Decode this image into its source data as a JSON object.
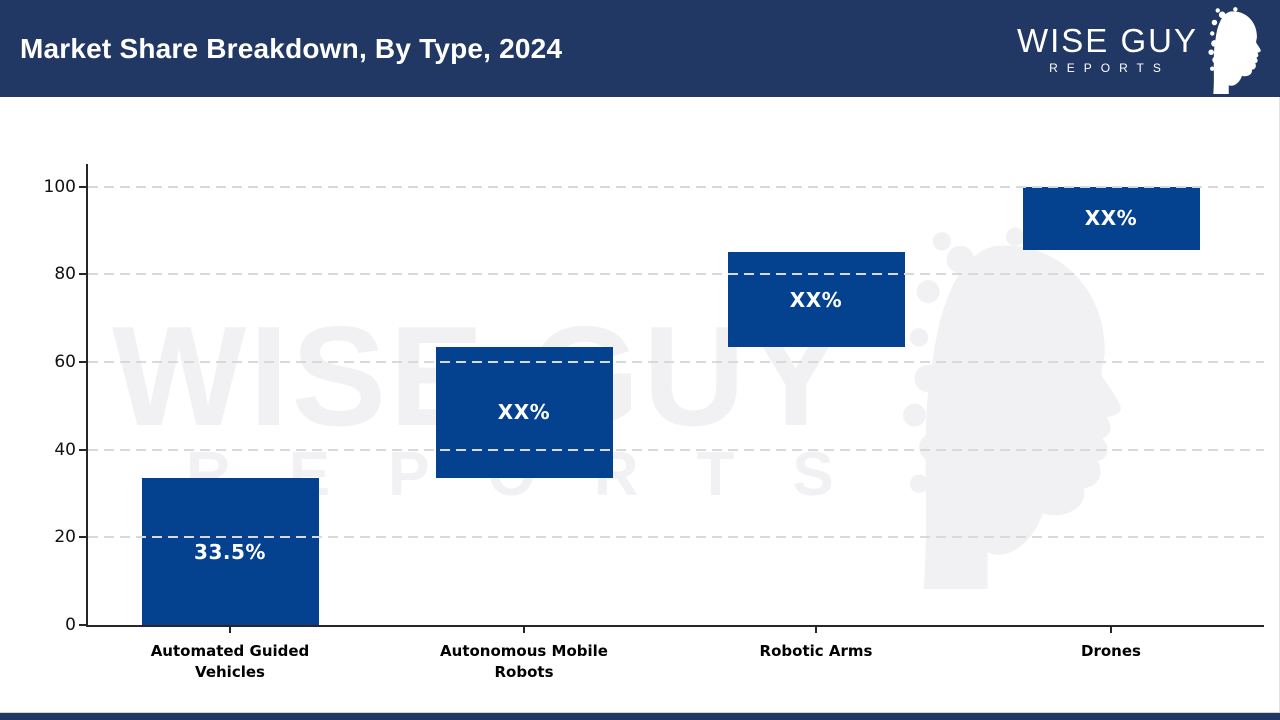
{
  "header": {
    "title": "Market Share Breakdown, By Type, 2024",
    "logo": {
      "line1": "WISE GUY",
      "line2": "REPORTS"
    }
  },
  "watermark": {
    "line1": "WISE GUY",
    "line2": "REPORTS"
  },
  "colors": {
    "header_bg": "#213764",
    "footer_bg": "#213764",
    "bar": "#04418f",
    "bar_label": "#ffffff",
    "grid": "#d9d9d9",
    "axis": "#262626",
    "watermark": "#f1f1f4"
  },
  "chart_data": {
    "type": "bar",
    "subtype": "floating-waterfall",
    "title": "Market Share Breakdown, By Type, 2024",
    "categories": [
      "Automated Guided Vehicles",
      "Autonomous Mobile Robots",
      "Robotic Arms",
      "Drones"
    ],
    "category_label_lines": [
      [
        "Automated Guided",
        "Vehicles"
      ],
      [
        "Autonomous Mobile",
        "Robots"
      ],
      [
        "Robotic Arms"
      ],
      [
        "Drones"
      ]
    ],
    "series": [
      {
        "name": "Market Share (%)",
        "segments": [
          {
            "category": "Automated Guided Vehicles",
            "start": 0,
            "end": 33.5,
            "label": "33.5%"
          },
          {
            "category": "Autonomous Mobile Robots",
            "start": 33.5,
            "end": 63.5,
            "label": "XX%"
          },
          {
            "category": "Robotic Arms",
            "start": 63.5,
            "end": 85,
            "label": "XX%"
          },
          {
            "category": "Drones",
            "start": 85.5,
            "end": 100,
            "label": "XX%"
          }
        ]
      }
    ],
    "xlabel": "",
    "ylabel": "",
    "ylim": [
      0,
      105
    ],
    "yticks": [
      0,
      20,
      40,
      60,
      80,
      100
    ],
    "grid": {
      "axis": "y",
      "style": "dashed",
      "above_bars": true
    },
    "legend": "none"
  }
}
